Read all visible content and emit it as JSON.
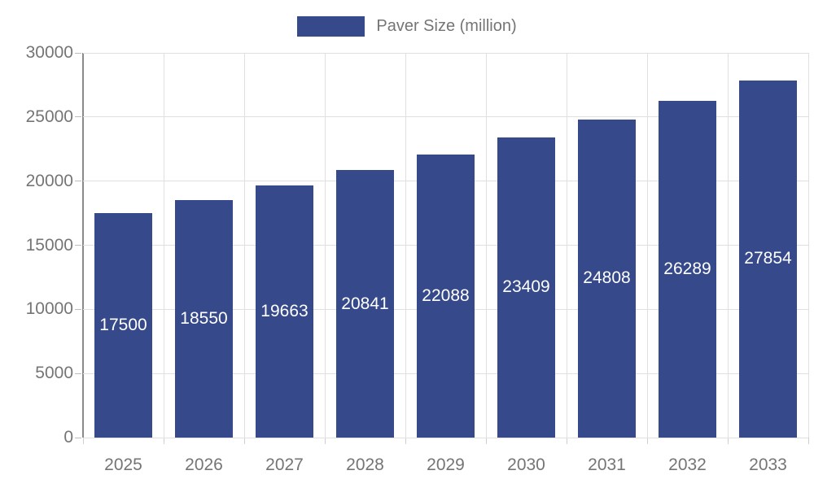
{
  "chart_data": {
    "type": "bar",
    "title": "",
    "legend": {
      "label": "Paver Size (million)",
      "position": "top-center"
    },
    "categories": [
      "2025",
      "2026",
      "2027",
      "2028",
      "2029",
      "2030",
      "2031",
      "2032",
      "2033"
    ],
    "series": [
      {
        "name": "Paver Size (million)",
        "values": [
          17500,
          18550,
          19663,
          20841,
          22088,
          23409,
          24808,
          26289,
          27854
        ]
      }
    ],
    "value_labels_shown": true,
    "xlabel": "",
    "ylabel": "",
    "ylim": [
      0,
      30000
    ],
    "yticks": [
      0,
      5000,
      10000,
      15000,
      20000,
      25000,
      30000
    ],
    "grid": true,
    "colors": {
      "bar": "#36498a",
      "grid": "#e0e0e0",
      "axis": "#8a8a8a",
      "tick_label": "#757575",
      "value_label": "#ffffff",
      "background": "#ffffff"
    }
  }
}
